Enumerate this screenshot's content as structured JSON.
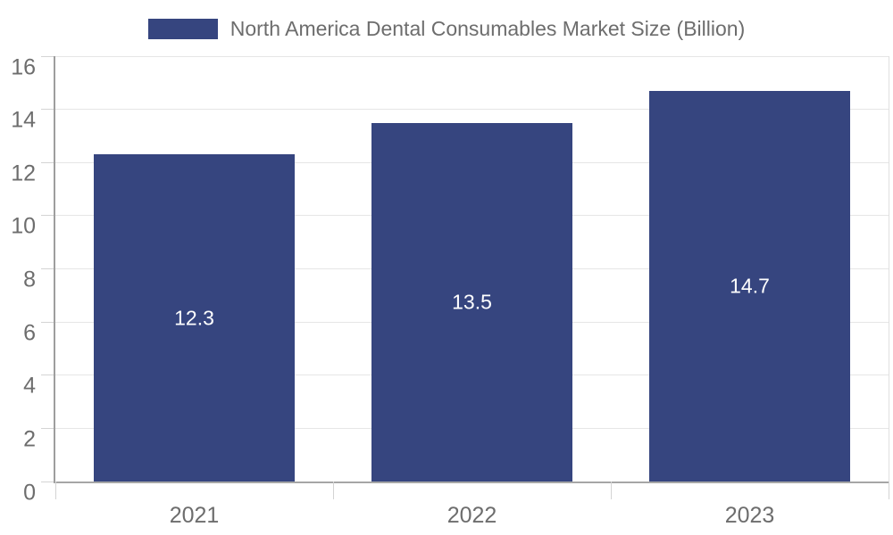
{
  "chart_data": {
    "type": "bar",
    "title": "North America Dental Consumables Market Size (Billion)",
    "categories": [
      "2021",
      "2022",
      "2023"
    ],
    "values": [
      12.3,
      13.5,
      14.7
    ],
    "bar_value_labels": [
      "12.3",
      "13.5",
      "14.7"
    ],
    "xlabel": "",
    "ylabel": "",
    "ylim": [
      0,
      16
    ],
    "ytick_step": 2,
    "ytick_labels": [
      "0",
      "2",
      "4",
      "6",
      "8",
      "10",
      "12",
      "14",
      "16"
    ],
    "grid": "on",
    "legend": {
      "position": "top-center",
      "label": "North America Dental Consumables Market Size (Billion)"
    },
    "colors": {
      "bar_fill": "#36457f",
      "bar_value_text": "#ffffff",
      "tick_text": "#6d6d6d",
      "gridline": "#e6e6e6",
      "axis_line": "#a6a6a6",
      "background": "#ffffff"
    }
  }
}
